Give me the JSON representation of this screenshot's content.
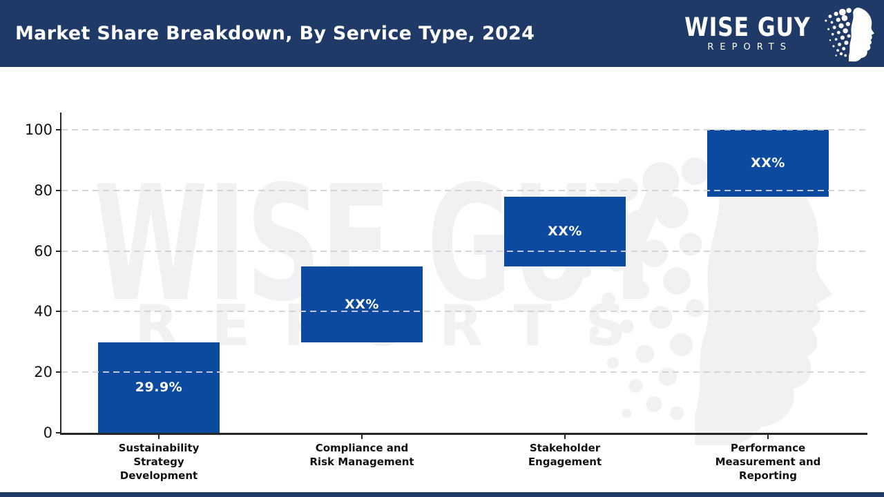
{
  "header": {
    "title": "Market Share Breakdown, By Service Type, 2024",
    "logo": {
      "name": "WISE GUY",
      "sub": "REPORTS"
    }
  },
  "watermark": {
    "big": "WISE GUY",
    "sub": "REPORTS"
  },
  "chart_data": {
    "type": "bar",
    "variant": "waterfall",
    "title": "Market Share Breakdown, By Service Type, 2024",
    "categories": [
      "Sustainability Strategy Development",
      "Compliance and Risk Management",
      "Stakeholder Engagement",
      "Performance Measurement and Reporting"
    ],
    "category_lines": [
      [
        "Sustainability",
        "Strategy",
        "Development"
      ],
      [
        "Compliance and",
        "Risk Management"
      ],
      [
        "Stakeholder",
        "Engagement"
      ],
      [
        "Performance",
        "Measurement and",
        "Reporting"
      ]
    ],
    "series": [
      {
        "name": "Market share (%)",
        "segments": [
          {
            "start": 0,
            "end": 29.9,
            "label": "29.9%"
          },
          {
            "start": 29.9,
            "end": 55,
            "label": "XX%"
          },
          {
            "start": 55,
            "end": 78,
            "label": "XX%"
          },
          {
            "start": 78,
            "end": 100,
            "label": "XX%"
          }
        ]
      }
    ],
    "yticks": [
      0,
      20,
      40,
      60,
      80,
      100
    ],
    "ylim": [
      0,
      105
    ],
    "xlabel": "",
    "ylabel": "",
    "legend": "none",
    "grid": "horizontal-dashed-over-bars",
    "colors": {
      "bar": "#0b4a9e",
      "bar_label": "#ffffff",
      "grid": "#d4d4d4",
      "axis": "#262626",
      "header_bg": "#1f3a66",
      "watermark": "#f1f1f4"
    }
  }
}
